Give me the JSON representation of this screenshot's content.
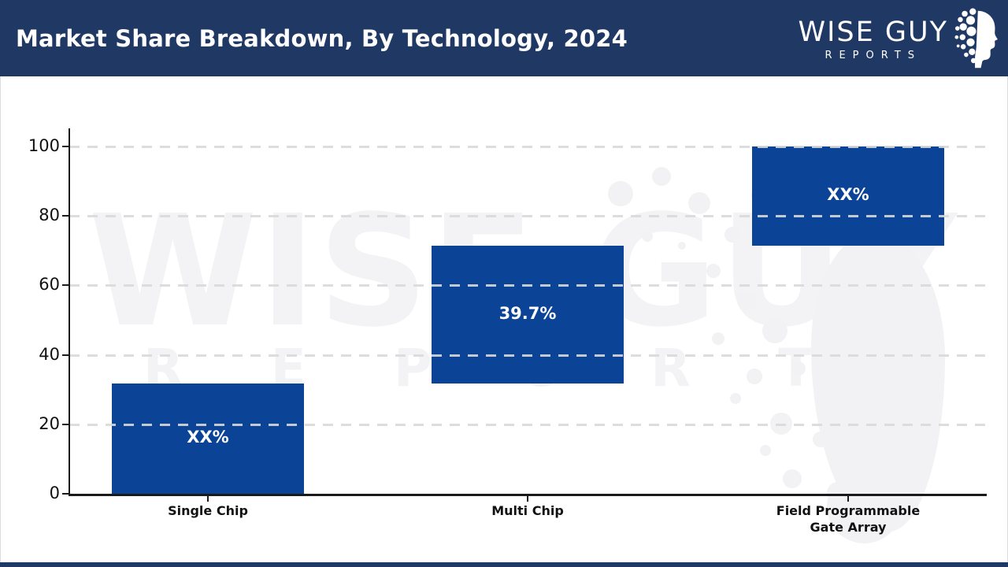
{
  "header": {
    "title": "Market Share Breakdown, By Technology, 2024",
    "logo": {
      "line1": "WISE GUY",
      "line2": "REPORTS"
    }
  },
  "watermark": {
    "line1": "WISE GUY",
    "line2": "R E P O R T S"
  },
  "colors": {
    "header_bg": "#203864",
    "footer_bg": "#203864",
    "bar_fill": "#0b4396",
    "bar_label_text": "#ffffff",
    "gridline": "#d9d9d9",
    "axis": "#1a1a1a",
    "watermark": "#f3f3f5"
  },
  "chart_data": {
    "type": "bar",
    "subtype": "floating-waterfall",
    "title": "Market Share Breakdown, By Technology, 2024",
    "categories": [
      "Single Chip",
      "Multi Chip",
      "Field Programmable Gate Array"
    ],
    "bars": [
      {
        "category": "Single Chip",
        "start": 0,
        "end": 31.7,
        "label": "XX%"
      },
      {
        "category": "Multi Chip",
        "start": 31.7,
        "end": 71.4,
        "label": "39.7%"
      },
      {
        "category": "Field Programmable Gate Array",
        "start": 71.5,
        "end": 100,
        "label": "XX%"
      }
    ],
    "xlabel": "",
    "ylabel": "",
    "yticks": [
      0,
      20,
      40,
      60,
      80,
      100
    ],
    "ylim": [
      0,
      105
    ],
    "grid": "horizontal-dashed",
    "legend": false
  }
}
